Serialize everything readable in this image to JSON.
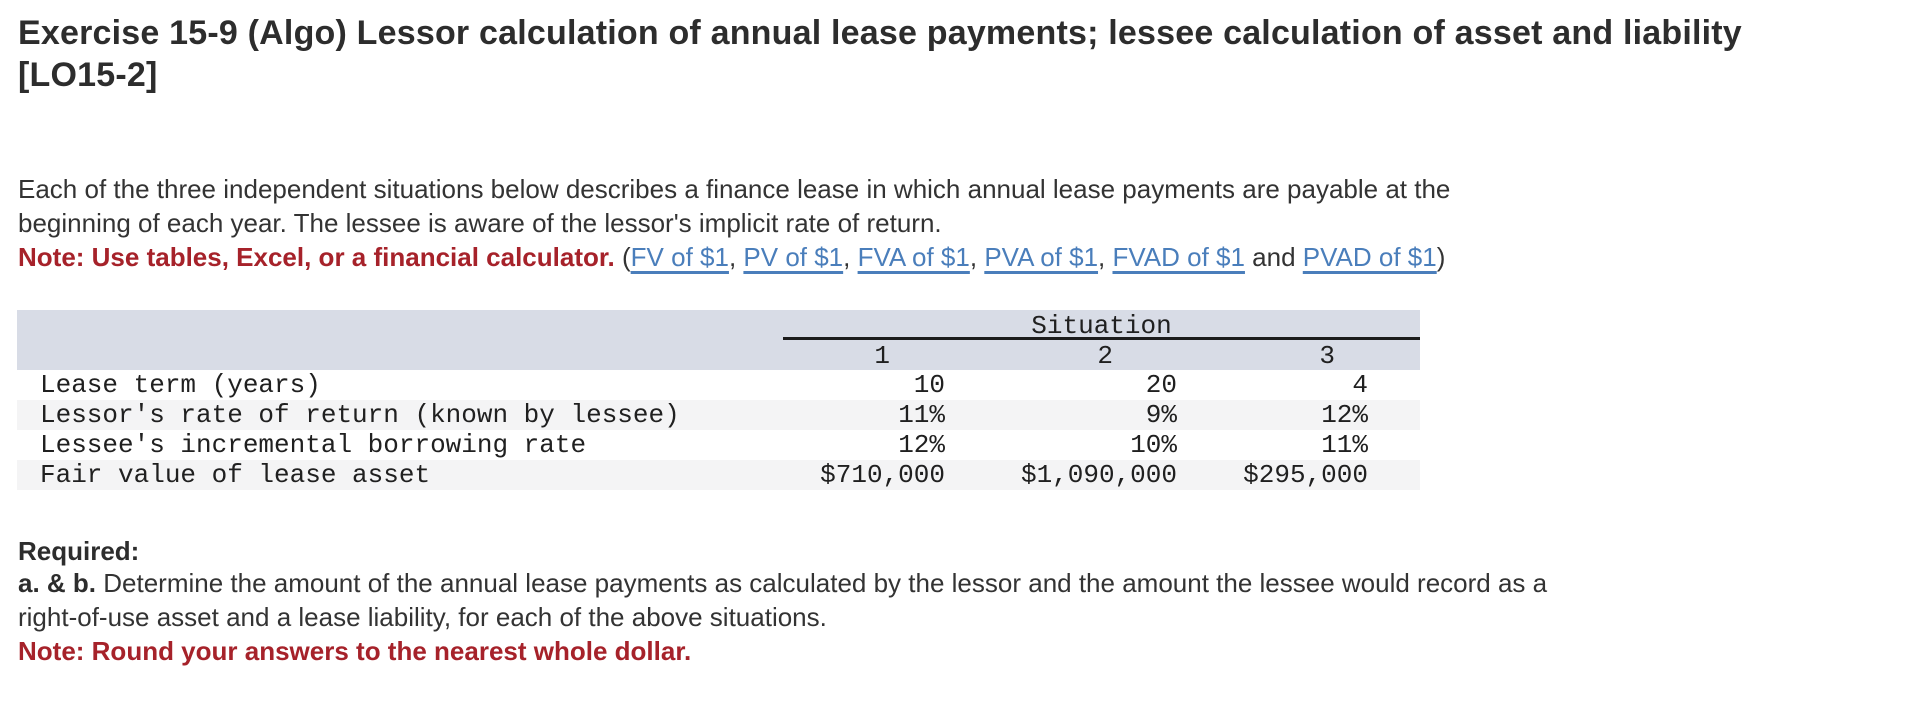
{
  "title": {
    "line1": "Exercise 15-9 (Algo) Lessor calculation of annual lease payments; lessee calculation of asset and liability",
    "line2": "[LO15-2]"
  },
  "intro": {
    "line1": "Each of the three independent situations below describes a finance lease in which annual lease payments are payable at the",
    "line2": "beginning of each year. The lessee is aware of the lessor's implicit rate of return.",
    "note_label": "Note: Use tables, Excel, or a financial calculator.",
    "paren_open": " (",
    "links": [
      "FV of $1",
      "PV of $1",
      "FVA of $1",
      "PVA of $1",
      "FVAD of $1",
      "PVAD of $1"
    ],
    "separator": ", ",
    "conjunction": " and ",
    "paren_close": ")"
  },
  "table": {
    "header_group": "Situation",
    "columns": [
      "1",
      "2",
      "3"
    ],
    "rows": [
      {
        "label": "Lease term (years)",
        "values": [
          "10",
          "20",
          "4"
        ]
      },
      {
        "label": "Lessor's rate of return (known by lessee)",
        "values": [
          "11%",
          "9%",
          "12%"
        ]
      },
      {
        "label": "Lessee's incremental borrowing rate",
        "values": [
          "12%",
          "10%",
          "11%"
        ]
      },
      {
        "label": "Fair value of lease asset",
        "values": [
          "$710,000",
          "$1,090,000",
          "$295,000"
        ]
      }
    ]
  },
  "required": {
    "heading": "Required:",
    "item_prefix": "a. & b.",
    "body_line1": "Determine the amount of the annual lease payments as calculated by the lessor and the amount the lessee would record as a",
    "body_line2": "right-of-use asset and a lease liability, for each of the above situations.",
    "note": "Note: Round your answers to the nearest whole dollar."
  },
  "colors": {
    "accent_red": "#a6222a",
    "link_blue": "#4a7ebb",
    "table_header_bg": "#d8dce6",
    "table_stripe_bg": "#f4f4f5"
  }
}
